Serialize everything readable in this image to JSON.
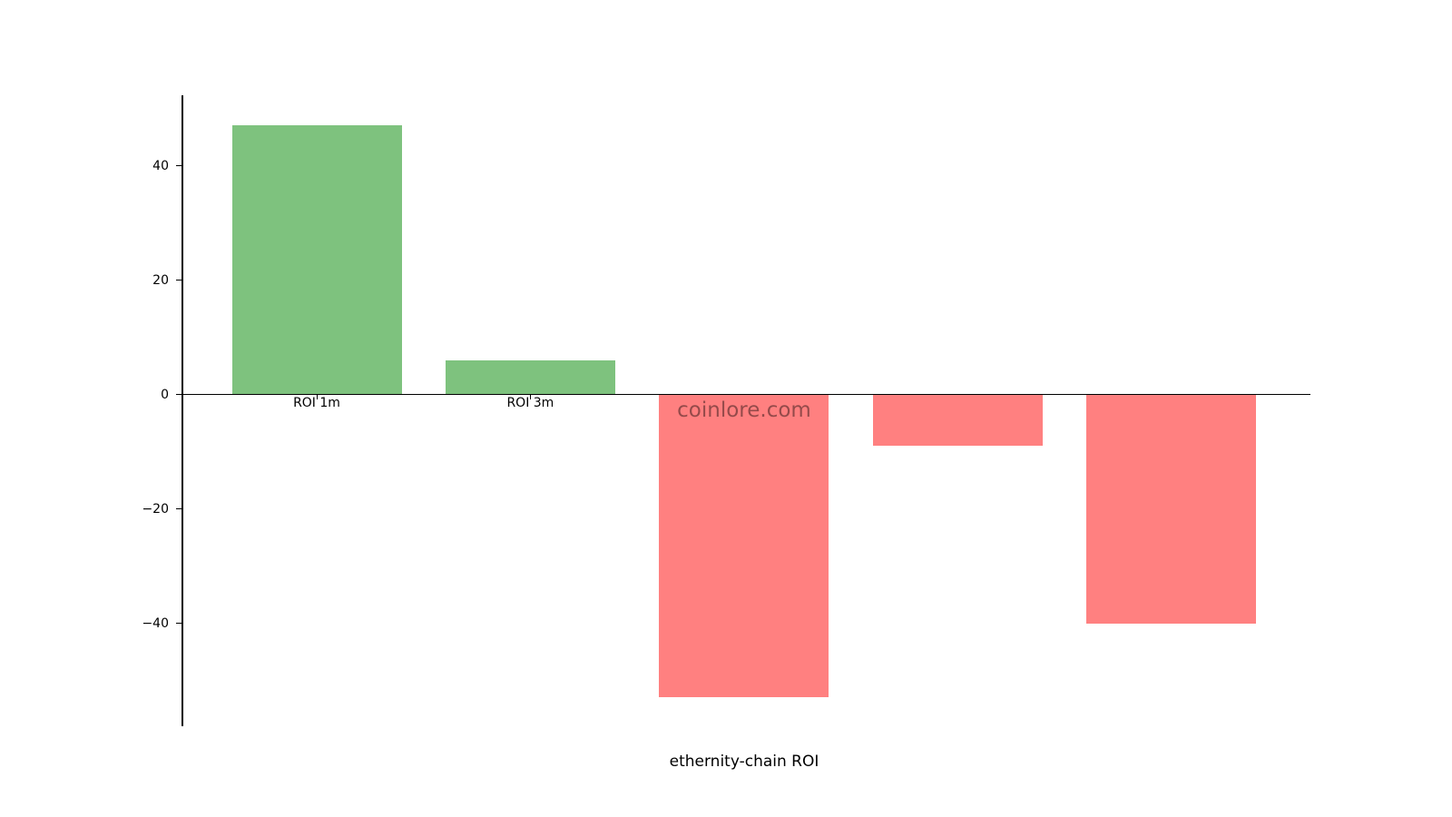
{
  "watermark": {
    "text": "coinlore.com"
  },
  "chart_data": {
    "type": "bar",
    "title": "",
    "xlabel": "ethernity-chain ROI",
    "ylabel": "",
    "categories": [
      "ROI 1m",
      "ROI 3m",
      "",
      "",
      ""
    ],
    "values": [
      47,
      6,
      -53,
      -9,
      -40
    ],
    "yticks": [
      40,
      20,
      0,
      -20,
      -40
    ],
    "ylim": [
      -58,
      52
    ],
    "grid": false,
    "legend": null,
    "colors": {
      "positive": "#7ec27e",
      "negative": "#ff8080",
      "axis": "#000000",
      "watermark_text": "rgba(0,0,0,0.42)",
      "background": "#ffffff"
    },
    "notes": "x tick labels of the three negative bars are hidden behind the bars"
  }
}
